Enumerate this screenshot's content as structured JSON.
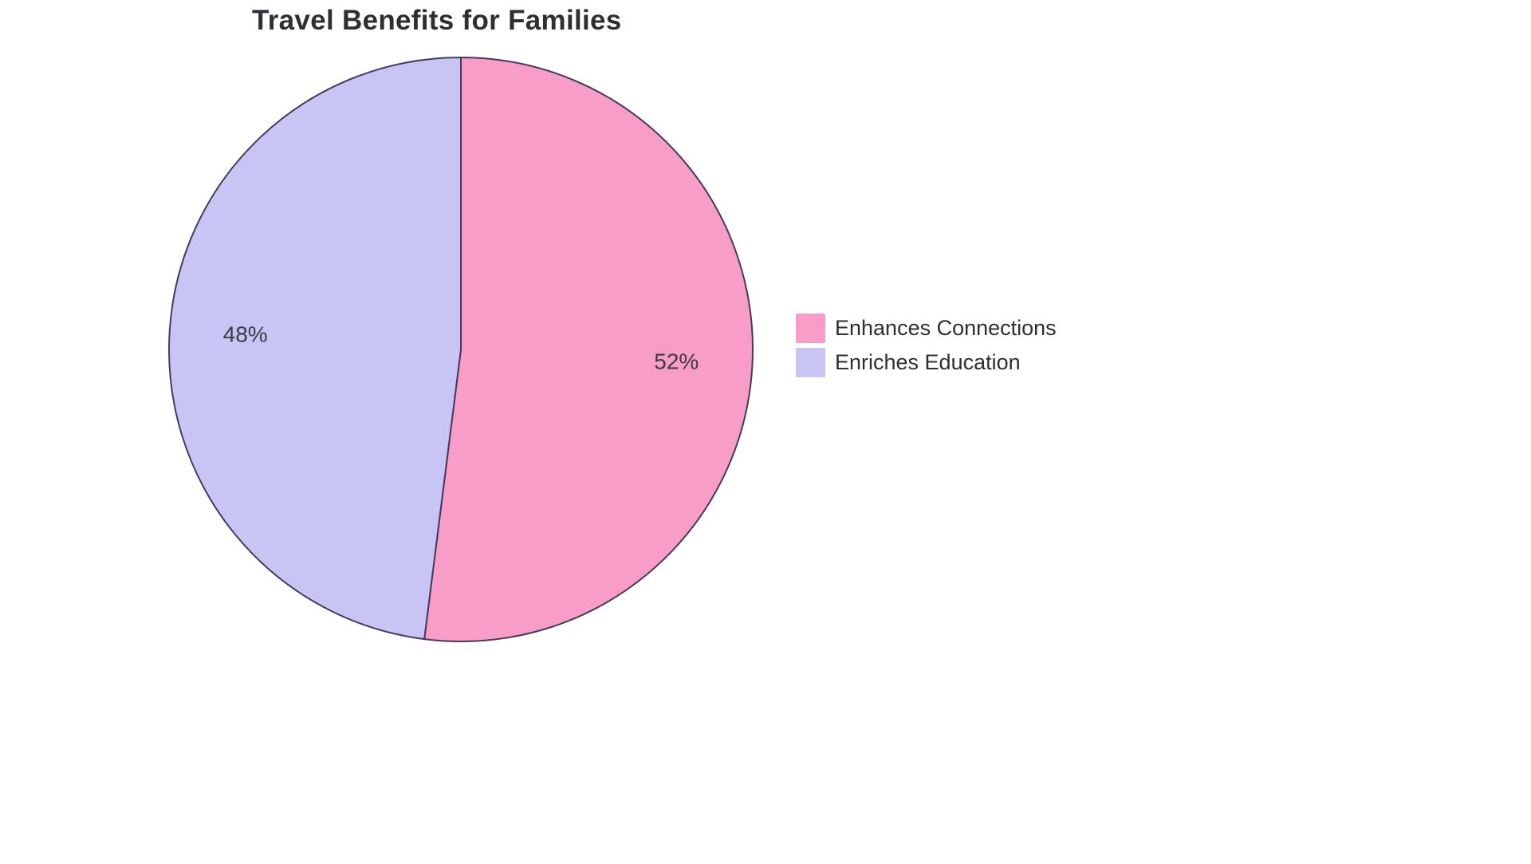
{
  "chart_data": {
    "type": "pie",
    "title": "Travel Benefits for Families",
    "labels": [
      "Enhances Connections",
      "Enriches Education"
    ],
    "values": [
      52,
      48
    ],
    "percent_labels": [
      "52%",
      "48%"
    ],
    "colors": [
      "#F79DC7",
      "#C8C4F4"
    ],
    "stroke_color": "#433A5E",
    "label_color": "#3b3b40",
    "start_angle_deg": -90,
    "direction": "clockwise",
    "legend_position": "right",
    "grid": false
  }
}
